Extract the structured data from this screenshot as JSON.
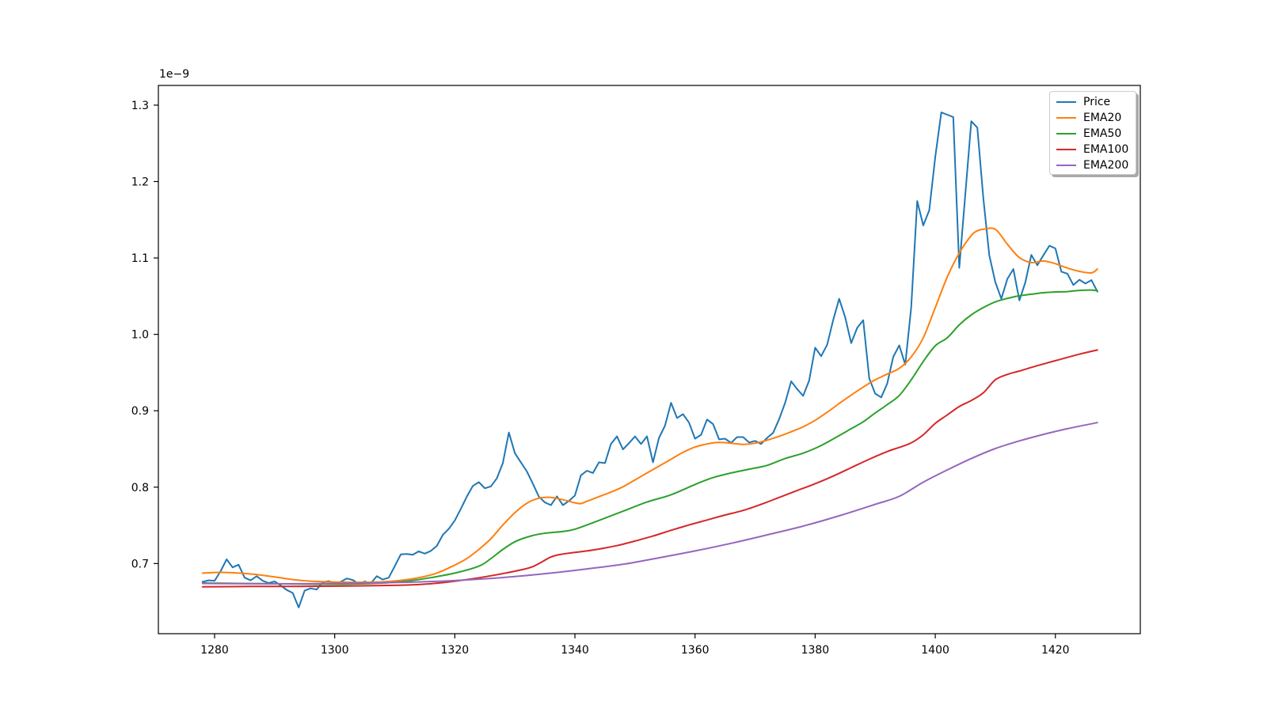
{
  "figure": {
    "background": "#ffffff",
    "offset_text": "1e−9"
  },
  "chart_data": {
    "type": "line",
    "title": "",
    "xlabel": "",
    "ylabel": "",
    "unit_multiplier": "1e-9",
    "grid": false,
    "xlim": [
      1270.64,
      1434.14
    ],
    "ylim": [
      0.6082,
      1.3258
    ],
    "xticks": [
      1280,
      1300,
      1320,
      1340,
      1360,
      1380,
      1400,
      1420
    ],
    "xtick_labels": [
      "1280",
      "1300",
      "1320",
      "1340",
      "1360",
      "1380",
      "1400",
      "1420"
    ],
    "yticks": [
      0.7,
      0.8,
      0.9,
      1.0,
      1.1,
      1.2,
      1.3
    ],
    "ytick_labels": [
      "0.7",
      "0.8",
      "0.9",
      "1.0",
      "1.1",
      "1.2",
      "1.3"
    ],
    "legend": {
      "position": "upper right",
      "entries": [
        {
          "label": "Price",
          "color": "#1f77b4"
        },
        {
          "label": "EMA20",
          "color": "#ff7f0e"
        },
        {
          "label": "EMA50",
          "color": "#2ca02c"
        },
        {
          "label": "EMA100",
          "color": "#d62728"
        },
        {
          "label": "EMA200",
          "color": "#9467bd"
        }
      ]
    },
    "series": [
      {
        "name": "Price",
        "color": "#1f77b4",
        "draw": "polyline",
        "x_start": 1278,
        "x_step": 1,
        "values": [
          0.676,
          0.678,
          0.6775,
          0.69,
          0.7055,
          0.695,
          0.6985,
          0.6815,
          0.678,
          0.6835,
          0.6775,
          0.6745,
          0.6765,
          0.6715,
          0.6655,
          0.6615,
          0.6425,
          0.6645,
          0.6675,
          0.666,
          0.6755,
          0.677,
          0.6745,
          0.676,
          0.6805,
          0.6785,
          0.6735,
          0.6765,
          0.674,
          0.6835,
          0.679,
          0.6815,
          0.6965,
          0.712,
          0.7125,
          0.7115,
          0.716,
          0.713,
          0.7165,
          0.723,
          0.7375,
          0.7455,
          0.7565,
          0.7715,
          0.7875,
          0.8015,
          0.8065,
          0.7985,
          0.801,
          0.8115,
          0.8315,
          0.8715,
          0.8445,
          0.8325,
          0.8205,
          0.8045,
          0.7875,
          0.78,
          0.7765,
          0.788,
          0.7765,
          0.782,
          0.789,
          0.8155,
          0.8215,
          0.8185,
          0.8325,
          0.8315,
          0.8565,
          0.8665,
          0.8495,
          0.8575,
          0.8665,
          0.8565,
          0.8665,
          0.8325,
          0.8645,
          0.8805,
          0.9105,
          0.8905,
          0.8955,
          0.8845,
          0.8635,
          0.8685,
          0.8885,
          0.8825,
          0.8625,
          0.8635,
          0.858,
          0.8655,
          0.8655,
          0.8585,
          0.8605,
          0.8565,
          0.8645,
          0.871,
          0.889,
          0.9105,
          0.9385,
          0.9285,
          0.9195,
          0.9395,
          0.9825,
          0.9715,
          0.9865,
          1.0185,
          1.0465,
          1.0225,
          0.9885,
          1.0085,
          1.0185,
          0.9425,
          0.9225,
          0.9175,
          0.9355,
          0.9705,
          0.9855,
          0.9605,
          1.0355,
          1.1745,
          1.1425,
          1.1625,
          1.2325,
          1.2905,
          1.2875,
          1.2845,
          1.087,
          1.183,
          1.279,
          1.2705,
          1.178,
          1.1035,
          1.0685,
          1.0465,
          1.0725,
          1.0855,
          1.0445,
          1.068,
          1.104,
          1.0905,
          1.1035,
          1.116,
          1.1125,
          1.082,
          1.0795,
          1.0645,
          1.0715,
          1.0665,
          1.071,
          1.056
        ]
      },
      {
        "name": "EMA20",
        "color": "#ff7f0e",
        "draw": "smooth",
        "points": [
          [
            1278,
            0.6875
          ],
          [
            1281,
            0.6885
          ],
          [
            1284,
            0.6875
          ],
          [
            1287,
            0.6855
          ],
          [
            1290,
            0.6825
          ],
          [
            1293,
            0.679
          ],
          [
            1296,
            0.677
          ],
          [
            1299,
            0.676
          ],
          [
            1302,
            0.6755
          ],
          [
            1305,
            0.6755
          ],
          [
            1308,
            0.676
          ],
          [
            1311,
            0.678
          ],
          [
            1314,
            0.6815
          ],
          [
            1317,
            0.6875
          ],
          [
            1320,
            0.698
          ],
          [
            1322,
            0.7065
          ],
          [
            1324,
            0.7185
          ],
          [
            1326,
            0.7325
          ],
          [
            1328,
            0.7505
          ],
          [
            1330,
            0.7665
          ],
          [
            1332,
            0.779
          ],
          [
            1334,
            0.7855
          ],
          [
            1336,
            0.7865
          ],
          [
            1338,
            0.7835
          ],
          [
            1340,
            0.7795
          ],
          [
            1341,
            0.7785
          ],
          [
            1342,
            0.7815
          ],
          [
            1344,
            0.7875
          ],
          [
            1346,
            0.7935
          ],
          [
            1348,
            0.8005
          ],
          [
            1350,
            0.8095
          ],
          [
            1352,
            0.8185
          ],
          [
            1354,
            0.8275
          ],
          [
            1356,
            0.8365
          ],
          [
            1358,
            0.8455
          ],
          [
            1360,
            0.8525
          ],
          [
            1362,
            0.8565
          ],
          [
            1364,
            0.8585
          ],
          [
            1366,
            0.8575
          ],
          [
            1368,
            0.856
          ],
          [
            1370,
            0.8575
          ],
          [
            1372,
            0.8615
          ],
          [
            1374,
            0.8665
          ],
          [
            1376,
            0.8725
          ],
          [
            1378,
            0.879
          ],
          [
            1380,
            0.8875
          ],
          [
            1382,
            0.898
          ],
          [
            1384,
            0.9095
          ],
          [
            1386,
            0.9205
          ],
          [
            1388,
            0.931
          ],
          [
            1390,
            0.9405
          ],
          [
            1392,
            0.948
          ],
          [
            1394,
            0.9555
          ],
          [
            1396,
            0.9705
          ],
          [
            1398,
            0.9955
          ],
          [
            1400,
            1.035
          ],
          [
            1402,
            1.075
          ],
          [
            1404,
            1.1065
          ],
          [
            1406,
            1.1295
          ],
          [
            1407,
            1.1355
          ],
          [
            1408,
            1.1375
          ],
          [
            1410,
            1.1375
          ],
          [
            1412,
            1.118
          ],
          [
            1414,
            1.1005
          ],
          [
            1416,
            1.094
          ],
          [
            1418,
            1.096
          ],
          [
            1420,
            1.0925
          ],
          [
            1422,
            1.0868
          ],
          [
            1424,
            1.0825
          ],
          [
            1426,
            1.0805
          ],
          [
            1427,
            1.0855
          ]
        ]
      },
      {
        "name": "EMA50",
        "color": "#2ca02c",
        "draw": "smooth",
        "points": [
          [
            1278,
            0.6745
          ],
          [
            1284,
            0.674
          ],
          [
            1290,
            0.6735
          ],
          [
            1296,
            0.673
          ],
          [
            1302,
            0.673
          ],
          [
            1308,
            0.6745
          ],
          [
            1312,
            0.677
          ],
          [
            1316,
            0.6815
          ],
          [
            1320,
            0.6875
          ],
          [
            1324,
            0.6965
          ],
          [
            1326,
            0.7065
          ],
          [
            1328,
            0.7185
          ],
          [
            1330,
            0.7285
          ],
          [
            1332,
            0.7345
          ],
          [
            1334,
            0.7385
          ],
          [
            1336,
            0.7405
          ],
          [
            1338,
            0.742
          ],
          [
            1340,
            0.745
          ],
          [
            1344,
            0.7565
          ],
          [
            1348,
            0.7685
          ],
          [
            1352,
            0.7805
          ],
          [
            1356,
            0.79
          ],
          [
            1360,
            0.8035
          ],
          [
            1363,
            0.8125
          ],
          [
            1366,
            0.8185
          ],
          [
            1369,
            0.8235
          ],
          [
            1372,
            0.8285
          ],
          [
            1375,
            0.8375
          ],
          [
            1378,
            0.8445
          ],
          [
            1381,
            0.8545
          ],
          [
            1384,
            0.8675
          ],
          [
            1386,
            0.8765
          ],
          [
            1388,
            0.8855
          ],
          [
            1390,
            0.897
          ],
          [
            1392,
            0.908
          ],
          [
            1394,
            0.92
          ],
          [
            1396,
            0.9405
          ],
          [
            1398,
            0.9645
          ],
          [
            1400,
            0.985
          ],
          [
            1402,
            0.9955
          ],
          [
            1404,
            1.0125
          ],
          [
            1406,
            1.0255
          ],
          [
            1408,
            1.035
          ],
          [
            1410,
            1.0425
          ],
          [
            1412,
            1.047
          ],
          [
            1414,
            1.0505
          ],
          [
            1416,
            1.0525
          ],
          [
            1418,
            1.0545
          ],
          [
            1420,
            1.0555
          ],
          [
            1422,
            1.056
          ],
          [
            1424,
            1.0575
          ],
          [
            1426,
            1.058
          ],
          [
            1427,
            1.057
          ]
        ]
      },
      {
        "name": "EMA100",
        "color": "#d62728",
        "draw": "smooth",
        "points": [
          [
            1278,
            0.6695
          ],
          [
            1286,
            0.67
          ],
          [
            1294,
            0.67
          ],
          [
            1302,
            0.6705
          ],
          [
            1310,
            0.6715
          ],
          [
            1314,
            0.6725
          ],
          [
            1318,
            0.675
          ],
          [
            1322,
            0.679
          ],
          [
            1326,
            0.684
          ],
          [
            1330,
            0.69
          ],
          [
            1333,
            0.696
          ],
          [
            1336,
            0.7085
          ],
          [
            1338,
            0.7125
          ],
          [
            1340,
            0.7145
          ],
          [
            1342,
            0.7165
          ],
          [
            1344,
            0.719
          ],
          [
            1347,
            0.7235
          ],
          [
            1350,
            0.7295
          ],
          [
            1353,
            0.736
          ],
          [
            1356,
            0.7435
          ],
          [
            1359,
            0.7505
          ],
          [
            1362,
            0.757
          ],
          [
            1365,
            0.7635
          ],
          [
            1368,
            0.7695
          ],
          [
            1371,
            0.7775
          ],
          [
            1374,
            0.7865
          ],
          [
            1377,
            0.7955
          ],
          [
            1380,
            0.8045
          ],
          [
            1383,
            0.8145
          ],
          [
            1386,
            0.8255
          ],
          [
            1389,
            0.8365
          ],
          [
            1392,
            0.8466
          ],
          [
            1394,
            0.852
          ],
          [
            1396,
            0.858
          ],
          [
            1398,
            0.8685
          ],
          [
            1400,
            0.8835
          ],
          [
            1402,
            0.8945
          ],
          [
            1404,
            0.9055
          ],
          [
            1406,
            0.9135
          ],
          [
            1408,
            0.9235
          ],
          [
            1410,
            0.9405
          ],
          [
            1412,
            0.9475
          ],
          [
            1414,
            0.952
          ],
          [
            1417,
            0.959
          ],
          [
            1420,
            0.9655
          ],
          [
            1424,
            0.974
          ],
          [
            1427,
            0.9795
          ]
        ]
      },
      {
        "name": "EMA200",
        "color": "#9467bd",
        "draw": "smooth",
        "points": [
          [
            1278,
            0.674
          ],
          [
            1286,
            0.6735
          ],
          [
            1294,
            0.6735
          ],
          [
            1300,
            0.674
          ],
          [
            1306,
            0.6745
          ],
          [
            1312,
            0.6755
          ],
          [
            1318,
            0.677
          ],
          [
            1324,
            0.6795
          ],
          [
            1330,
            0.683
          ],
          [
            1336,
            0.6875
          ],
          [
            1342,
            0.693
          ],
          [
            1348,
            0.699
          ],
          [
            1354,
            0.7075
          ],
          [
            1360,
            0.7165
          ],
          [
            1366,
            0.7265
          ],
          [
            1372,
            0.7375
          ],
          [
            1378,
            0.749
          ],
          [
            1384,
            0.7625
          ],
          [
            1390,
            0.7775
          ],
          [
            1394,
            0.788
          ],
          [
            1398,
            0.8065
          ],
          [
            1402,
            0.8225
          ],
          [
            1406,
            0.8375
          ],
          [
            1410,
            0.8505
          ],
          [
            1414,
            0.8605
          ],
          [
            1418,
            0.869
          ],
          [
            1422,
            0.8765
          ],
          [
            1427,
            0.8845
          ]
        ]
      }
    ]
  }
}
